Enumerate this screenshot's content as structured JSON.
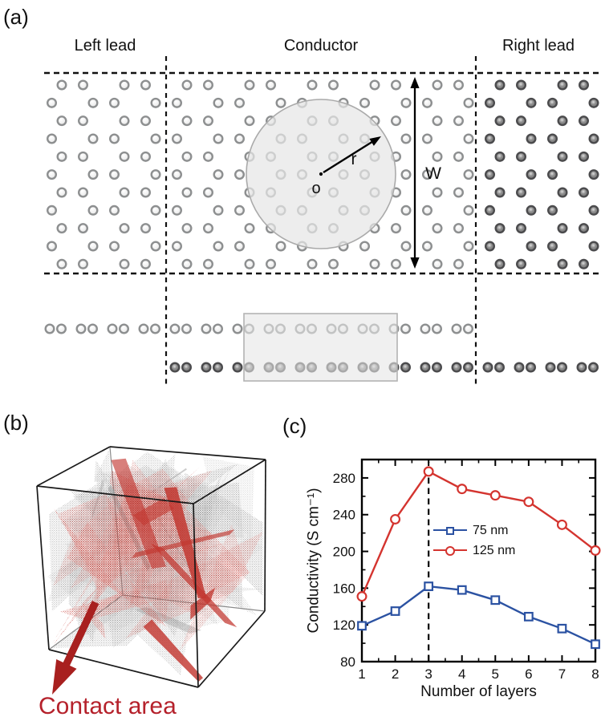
{
  "panel_a": {
    "label": "(a)",
    "regions": [
      {
        "name": "Left lead"
      },
      {
        "name": "Conductor"
      },
      {
        "name": "Right lead"
      }
    ],
    "annotations": {
      "origin": "o",
      "radius": "r",
      "width": "W"
    },
    "colors": {
      "light_atom_stroke": "#8d8f90",
      "light_atom_fill": "#ededed",
      "dark_atom_stroke": "#4b4b4d",
      "dark_atom_fill": "#909090",
      "shade_fill": "#e6e6e6",
      "shade_stroke": "#aaaaaa",
      "dash_color": "#111111"
    }
  },
  "panel_b": {
    "label": "(b)",
    "caption": "Contact area",
    "colors": {
      "caption_color": "#b5212b",
      "arrow_color": "#a8201f",
      "gray_flake": "#8e8e8e",
      "red_flake": "#c23730",
      "cube_edge": "#1a1a1a",
      "hidden_edge": "#8a8a8a"
    }
  },
  "panel_c": {
    "label": "(c)"
  },
  "chart_data": {
    "type": "line",
    "title": "",
    "xlabel": "Number of layers",
    "ylabel": "Conductivity (S cm⁻¹)",
    "x": [
      1,
      2,
      3,
      4,
      5,
      6,
      7,
      8
    ],
    "xlim": [
      1,
      8
    ],
    "ylim": [
      80,
      300
    ],
    "xticks": [
      1,
      2,
      3,
      4,
      5,
      6,
      7,
      8
    ],
    "yticks": [
      80,
      120,
      160,
      200,
      240,
      280
    ],
    "minor_y_step": 20,
    "minor_x_step": 0.5,
    "grid": false,
    "legend_position": "center",
    "dashed_guide_x": 3,
    "series": [
      {
        "name": "75 nm",
        "color": "#2b52a2",
        "marker": "square",
        "values": [
          119,
          135,
          162,
          158,
          147,
          129,
          116,
          99
        ]
      },
      {
        "name": "125 nm",
        "color": "#d4342f",
        "marker": "circle",
        "values": [
          151,
          235,
          287,
          268,
          261,
          254,
          229,
          201
        ]
      }
    ]
  }
}
